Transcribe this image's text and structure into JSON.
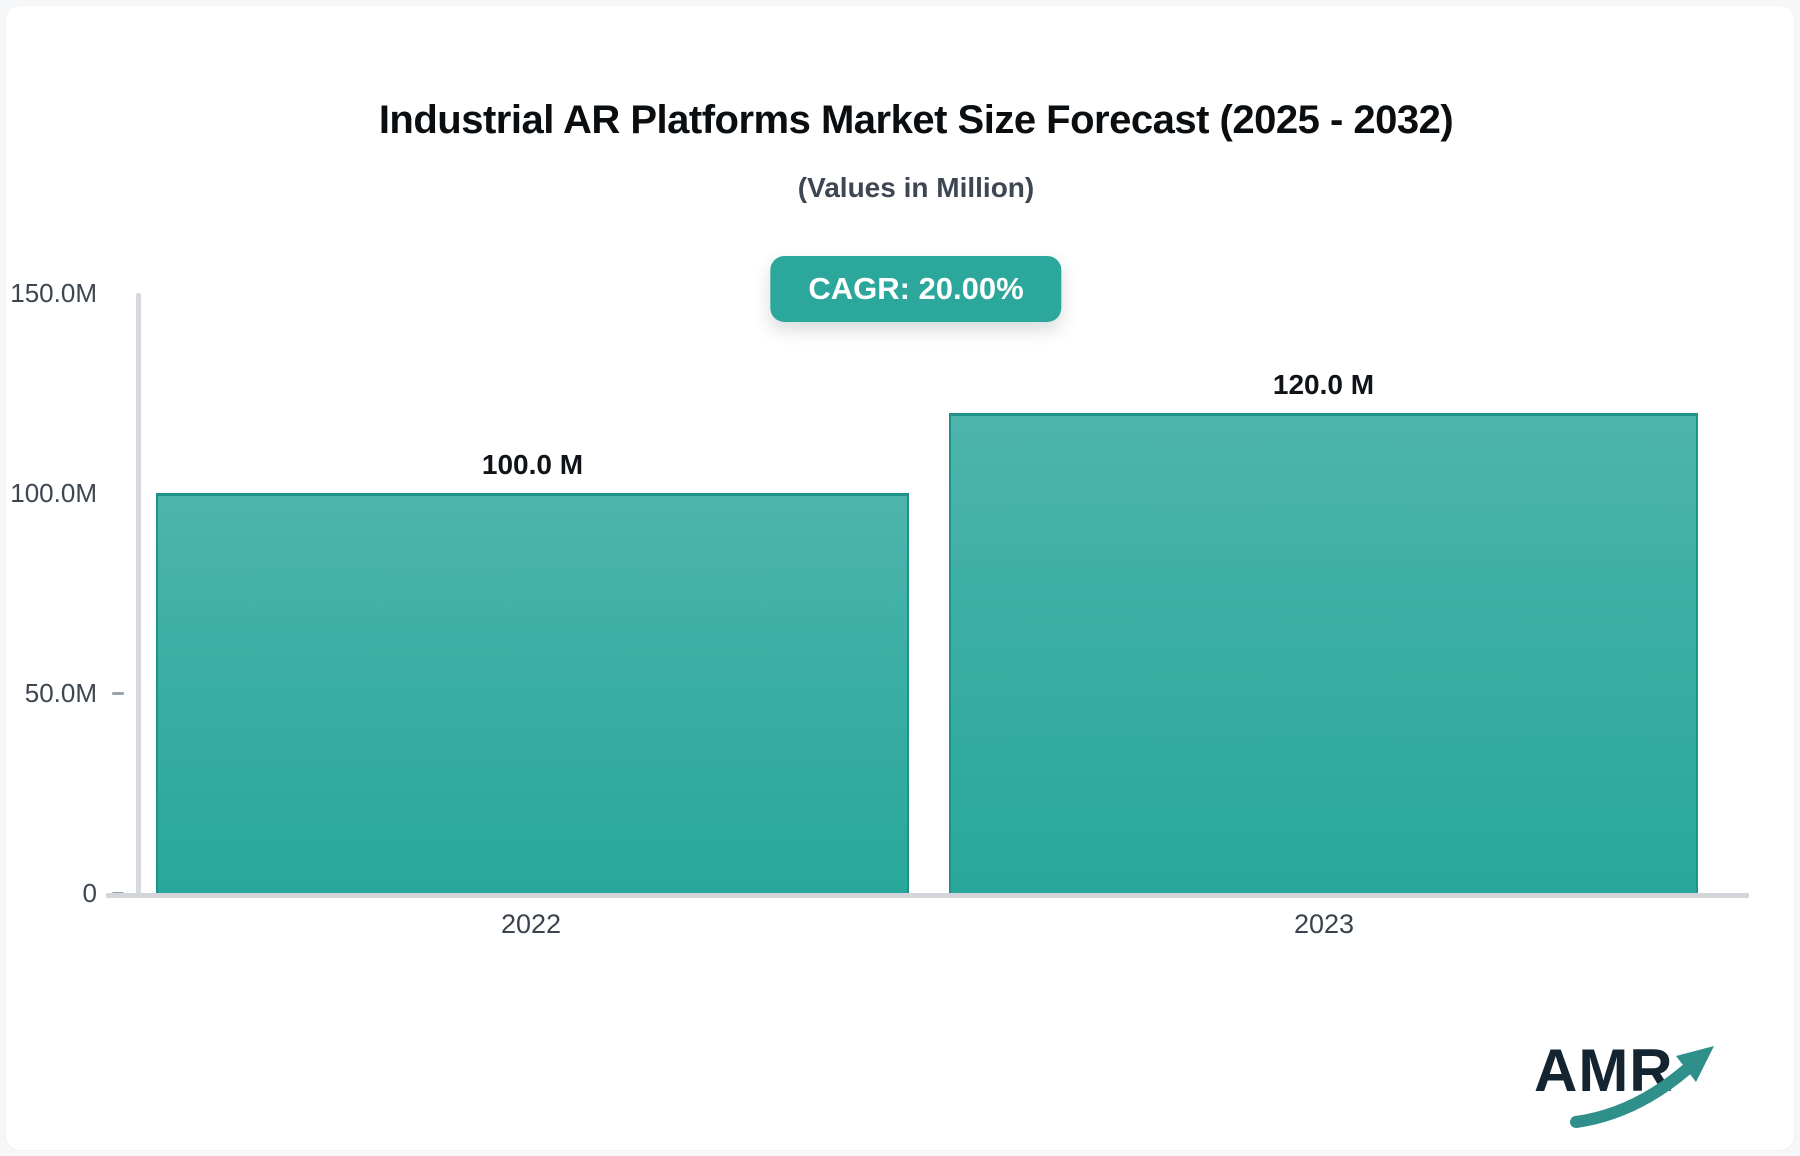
{
  "page": {
    "background": "#f6f7f9",
    "card_background": "#ffffff"
  },
  "header": {
    "title": "Industrial AR Platforms Market Size Forecast (2025 - 2032)",
    "subtitle": "(Values in Million)",
    "cagr_badge": {
      "label": "CAGR: 20.00%",
      "background": "#2ba79b",
      "text_color": "#ffffff"
    }
  },
  "chart_data": {
    "type": "bar",
    "title": "Industrial AR Platforms Market Size Forecast (2025 - 2032)",
    "subtitle": "(Values in Million)",
    "unit": "Million",
    "categories": [
      "2022",
      "2023"
    ],
    "values": [
      100.0,
      120.0
    ],
    "value_labels": [
      "100.0 M",
      "120.0 M"
    ],
    "y_ticks": [
      "150.0M",
      "100.0M",
      "50.0M",
      "0"
    ],
    "y_tick_values": [
      150,
      100,
      50,
      0
    ],
    "ylim": [
      0,
      150
    ],
    "xlabel": "",
    "ylabel": "",
    "grid": false,
    "legend": false,
    "cagr": "20.00%",
    "bar_color_top": "#4eb5ac",
    "bar_color_bottom": "#29a79b",
    "bar_border_color": "#1f9389",
    "axis_color": "#d4d8dd"
  },
  "branding": {
    "logo_text": "AMR",
    "logo_color": "#142430",
    "arrow_color": "#2f908b"
  }
}
